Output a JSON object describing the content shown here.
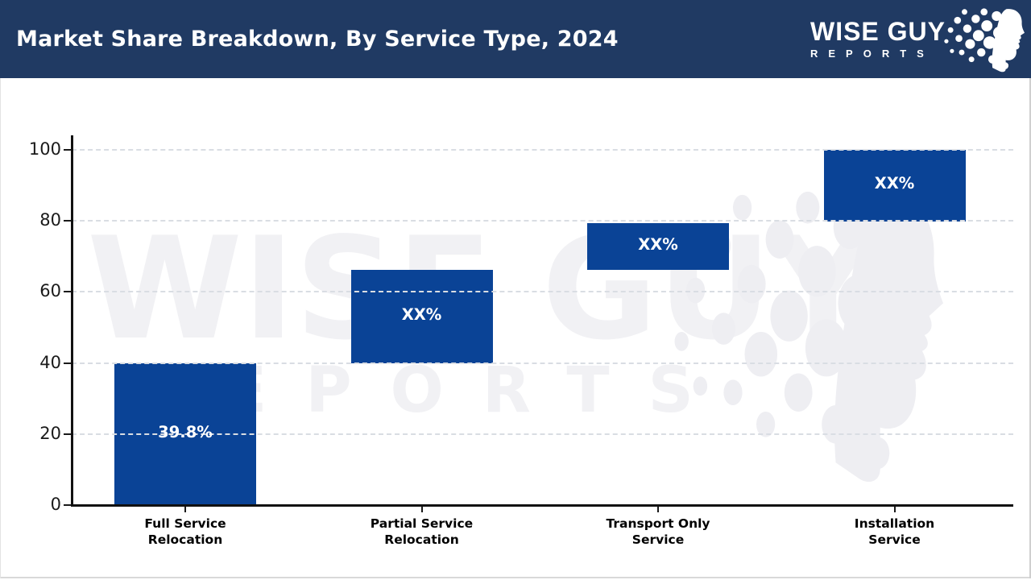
{
  "header": {
    "title": "Market Share Breakdown, By Service Type, 2024",
    "logo": {
      "line1": "WISE GUY",
      "line2": "REPORTS"
    }
  },
  "watermark": {
    "line1": "WISE GUY",
    "line2": "REPORTS"
  },
  "colors": {
    "header_bg": "#203a63",
    "bar": "#0a4396",
    "axis": "#111111",
    "grid": "#d9dde3",
    "value_label": "#ffffff",
    "watermark": "#f1f1f4"
  },
  "chart_data": {
    "type": "bar",
    "subtype": "waterfall",
    "title": "Market Share Breakdown, By Service Type, 2024",
    "categories": [
      "Full Service Relocation",
      "Partial Service Relocation",
      "Transport Only Service",
      "Installation Service"
    ],
    "segments": [
      {
        "category": "Full Service Relocation",
        "start": 0,
        "end": 39.8,
        "label": "39.8%"
      },
      {
        "category": "Partial Service Relocation",
        "start": 39.8,
        "end": 66.3,
        "label": "XX%"
      },
      {
        "category": "Transport Only Service",
        "start": 66.3,
        "end": 79.4,
        "label": "XX%"
      },
      {
        "category": "Installation Service",
        "start": 79.9,
        "end": 100,
        "label": "XX%"
      }
    ],
    "yticks": [
      0,
      20,
      40,
      60,
      80,
      100
    ],
    "ylim": [
      0,
      105
    ],
    "xlabel": "",
    "ylabel": "",
    "grid": "horizontal-dashed",
    "legend": "none",
    "bar_color": "#0a4396"
  }
}
